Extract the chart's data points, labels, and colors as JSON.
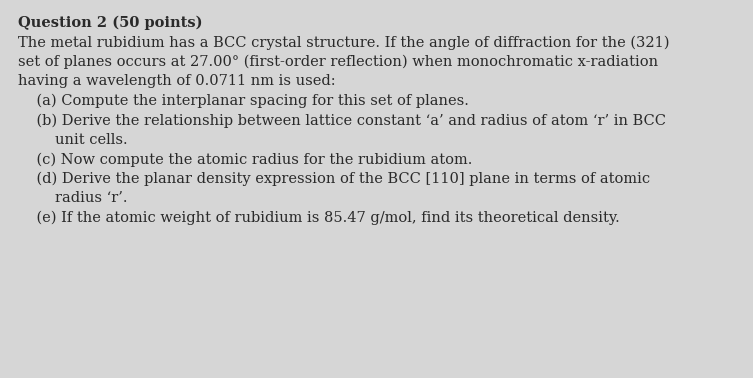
{
  "background_color": "#d6d6d6",
  "title": "Question 2 (50 points)",
  "lines": [
    "The metal rubidium has a BCC crystal structure. If the angle of diffraction for the (321)",
    "set of planes occurs at 27.00° (first-order reflection) when monochromatic x-radiation",
    "having a wavelength of 0.0711 nm is used:",
    "    (a) Compute the interplanar spacing for this set of planes.",
    "    (b) Derive the relationship between lattice constant ‘a’ and radius of atom ‘r’ in BCC",
    "        unit cells.",
    "    (c) Now compute the atomic radius for the rubidium atom.",
    "    (d) Derive the planar density expression of the BCC [110] plane in terms of atomic",
    "        radius ‘r’.",
    "    (e) If the atomic weight of rubidium is 85.47 g/mol, find its theoretical density."
  ],
  "text_color": "#2a2a2a",
  "font_size": 10.5
}
